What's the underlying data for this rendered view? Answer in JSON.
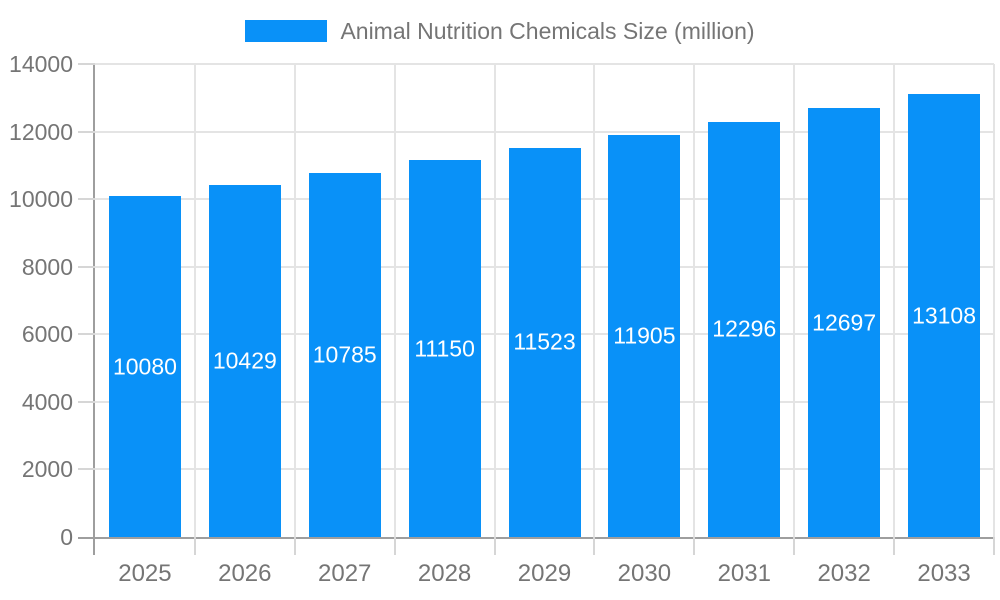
{
  "legend": {
    "series_label": "Animal Nutrition Chemicals Size (million)"
  },
  "chart_data": {
    "type": "bar",
    "title": "Animal Nutrition Chemicals Size (million)",
    "categories": [
      "2025",
      "2026",
      "2027",
      "2028",
      "2029",
      "2030",
      "2031",
      "2032",
      "2033"
    ],
    "values": [
      10080,
      10429,
      10785,
      11150,
      11523,
      11905,
      12296,
      12697,
      13108
    ],
    "series": [
      {
        "name": "Animal Nutrition Chemicals Size (million)",
        "values": [
          10080,
          10429,
          10785,
          11150,
          11523,
          11905,
          12296,
          12697,
          13108
        ]
      }
    ],
    "xlabel": "",
    "ylabel": "",
    "ylim": [
      0,
      14000
    ],
    "yticks": [
      0,
      2000,
      4000,
      6000,
      8000,
      10000,
      12000,
      14000
    ],
    "grid": true,
    "legend_position": "top-center",
    "bar_labels": "inside-center-white",
    "colors": {
      "bar": "#0991F8",
      "bar_label": "#FFFFFF",
      "axis_line": "#9E9E9E",
      "grid_line": "#E4E4E4",
      "tick_mark": "#D6D6D6",
      "tick_label": "#757575",
      "legend_text": "#757575"
    }
  }
}
